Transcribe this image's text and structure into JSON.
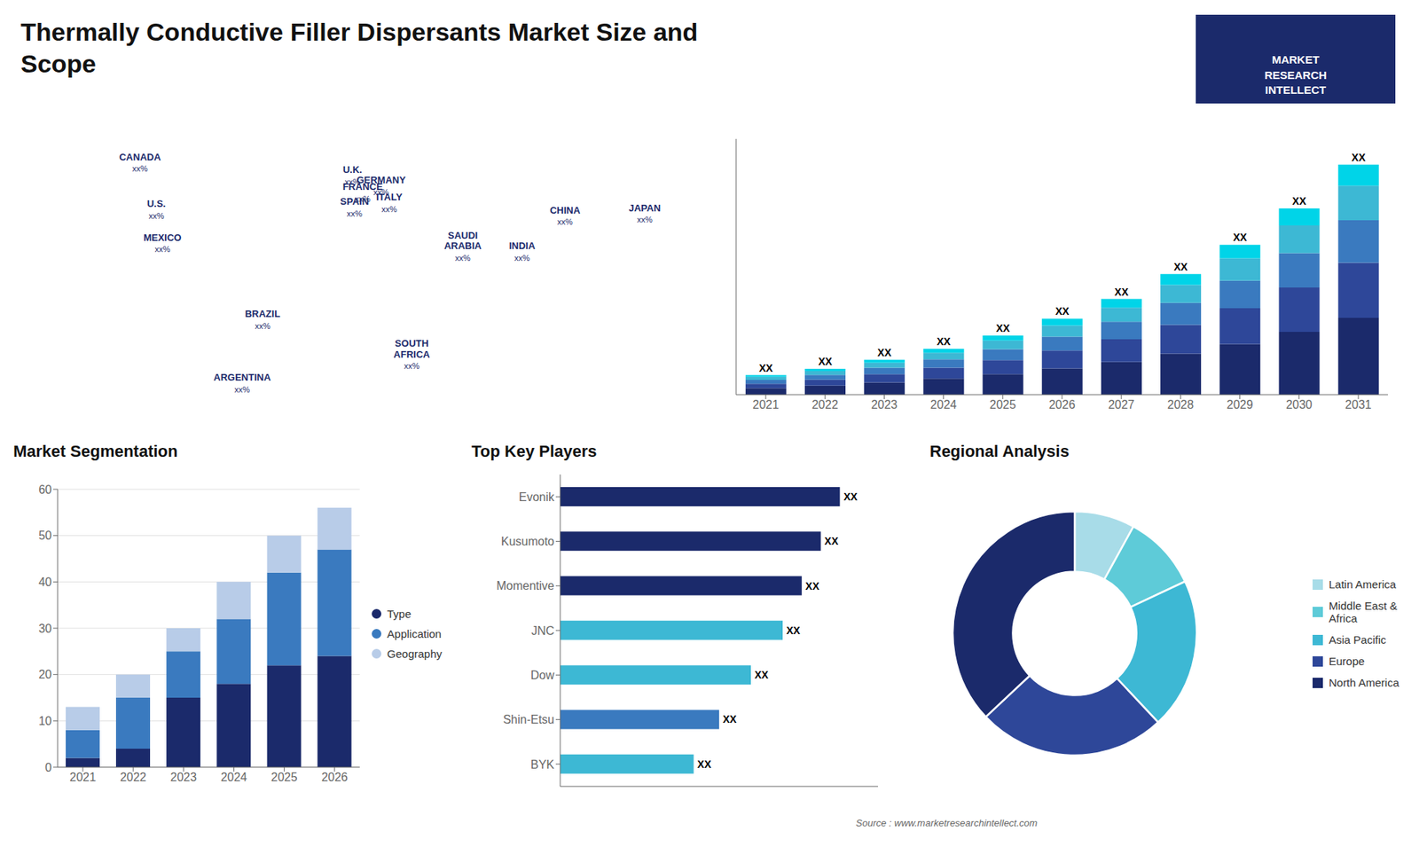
{
  "title": "Thermally Conductive Filler Dispersants Market Size and\nScope",
  "annotations": [
    "MARKET\nRESEARCH\nINTELLECT",
    "Source : www.marketresearchintellect.com"
  ],
  "chart_data": [
    {
      "type": "map",
      "categories": [
        "CANADA",
        "U.S.",
        "MEXICO",
        "BRAZIL",
        "ARGENTINA",
        "U.K.",
        "FRANCE",
        "SPAIN",
        "GERMANY",
        "ITALY",
        "SAUDI\nARABIA",
        "SOUTH\nAFRICA",
        "CHINA",
        "INDIA",
        "JAPAN"
      ],
      "x": [
        -108,
        -100,
        -97,
        -48,
        -58,
        -4,
        1,
        -3,
        10,
        14,
        50,
        25,
        100,
        79,
        139
      ],
      "y": [
        62,
        40,
        24,
        -12,
        -42,
        56,
        48,
        41,
        51,
        43,
        25,
        -26,
        37,
        20,
        38
      ],
      "value_labels": [
        "xx%",
        "xx%",
        "xx%",
        "xx%",
        "xx%",
        "xx%",
        "xx%",
        "xx%",
        "xx%",
        "xx%",
        "xx%",
        "xx%",
        "xx%",
        "xx%",
        "xx%"
      ],
      "xlim": [
        -170,
        170
      ],
      "ylim": [
        -65,
        85
      ],
      "tick_labels": false
    },
    {
      "type": "bar",
      "stacked": true,
      "categories": [
        "2021",
        "2022",
        "2023",
        "2024",
        "2025",
        "2026",
        "2027",
        "2028",
        "2029",
        "2030",
        "2031"
      ],
      "series": [
        {
          "color": "#1b2a6b",
          "values": [
            1.0,
            1.4,
            1.9,
            2.5,
            3.2,
            4.1,
            5.1,
            6.4,
            7.9,
            9.8,
            12.0
          ]
        },
        {
          "color": "#2e4799",
          "values": [
            0.7,
            0.95,
            1.3,
            1.7,
            2.2,
            2.8,
            3.55,
            4.5,
            5.6,
            6.95,
            8.6
          ]
        },
        {
          "color": "#3a7abf",
          "values": [
            0.6,
            0.75,
            1.0,
            1.3,
            1.7,
            2.15,
            2.75,
            3.45,
            4.3,
            5.35,
            6.65
          ]
        },
        {
          "color": "#3db8d4",
          "values": [
            0.5,
            0.6,
            0.8,
            1.05,
            1.35,
            1.75,
            2.2,
            2.8,
            3.5,
            4.35,
            5.4
          ]
        },
        {
          "color": "#00d4e8",
          "values": [
            0.25,
            0.35,
            0.45,
            0.6,
            0.8,
            1.05,
            1.35,
            1.7,
            2.1,
            2.65,
            3.3
          ]
        }
      ],
      "value_labels": [
        "XX",
        "XX",
        "XX",
        "XX",
        "XX",
        "XX",
        "XX",
        "XX",
        "XX",
        "XX",
        "XX"
      ],
      "ylim": [
        0,
        39.95
      ],
      "tick_labels": "x"
    },
    {
      "type": "bar",
      "stacked": true,
      "title": "Market Segmentation",
      "categories": [
        "2021",
        "2022",
        "2023",
        "2024",
        "2025",
        "2026"
      ],
      "series": [
        {
          "name": "Type",
          "color": "#1b2a6b",
          "values": [
            2,
            4,
            15,
            18,
            22,
            24
          ]
        },
        {
          "name": "Application",
          "color": "#3a7abf",
          "values": [
            6,
            11,
            10,
            14,
            20,
            23
          ]
        },
        {
          "name": "Geography",
          "color": "#b8cce8",
          "values": [
            5,
            5,
            5,
            8,
            8,
            9
          ]
        }
      ],
      "ylim": [
        0,
        60
      ],
      "yticks": [
        0,
        10,
        20,
        30,
        40,
        50,
        60
      ],
      "grid": true,
      "legend": "right"
    },
    {
      "type": "bar",
      "orientation": "horizontal",
      "title": "Top Key Players",
      "categories": [
        "Evonik",
        "Kusumoto",
        "Momentive",
        "JNC",
        "Dow",
        "Shin-Etsu",
        "BYK"
      ],
      "values": [
        0.88,
        0.82,
        0.76,
        0.7,
        0.6,
        0.5,
        0.42
      ],
      "colors": [
        "#1b2a6b",
        "#1b2a6b",
        "#1b2a6b",
        "#3db8d4",
        "#3db8d4",
        "#3a7abf",
        "#3db8d4"
      ],
      "value_labels": [
        "XX",
        "XX",
        "XX",
        "XX",
        "XX",
        "XX",
        "XX"
      ],
      "xlim": [
        0,
        1
      ],
      "tick_labels": "y"
    },
    {
      "type": "pie",
      "title": "Regional Analysis",
      "categories": [
        "Latin America",
        "Middle East &\nAfrica",
        "Asia Pacific",
        "Europe",
        "North America"
      ],
      "values": [
        8,
        10,
        20,
        25,
        37
      ],
      "colors": [
        "#a8dce8",
        "#5ecbd8",
        "#3db8d4",
        "#2e4799",
        "#1b2a6b"
      ],
      "legend": "right"
    }
  ]
}
